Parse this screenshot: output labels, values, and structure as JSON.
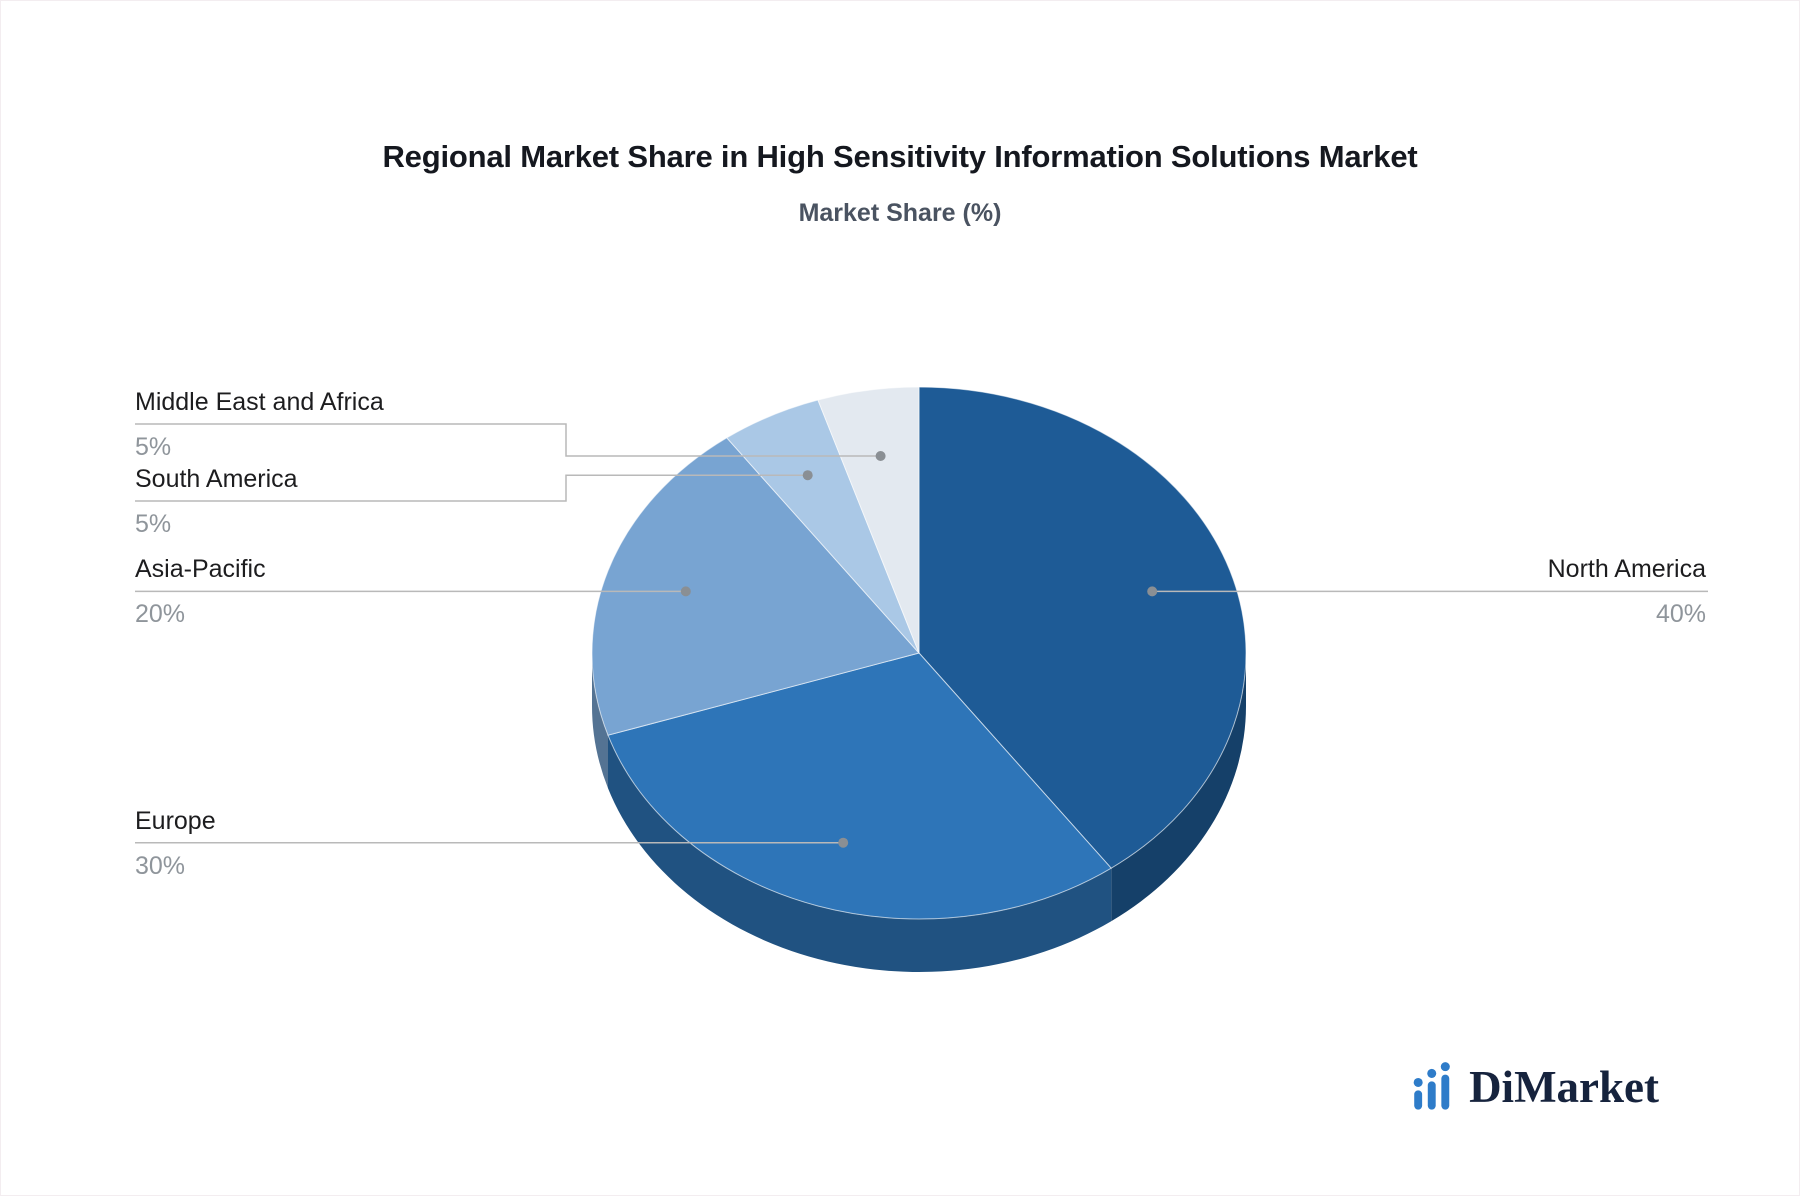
{
  "chart_data": {
    "type": "pie",
    "title": "Regional Market Share in High Sensitivity Information Solutions Market",
    "subtitle": "Market Share (%)",
    "unit": "%",
    "style": "3d-pie",
    "start_angle_deg": 0,
    "direction": "clockwise",
    "total": 100,
    "legend_position": "none",
    "slices": [
      {
        "label": "North America",
        "value": 40,
        "display": "40%",
        "color": "#1e5b96"
      },
      {
        "label": "Europe",
        "value": 30,
        "display": "30%",
        "color": "#2e75b8"
      },
      {
        "label": "Asia-Pacific",
        "value": 20,
        "display": "20%",
        "color": "#78a4d2"
      },
      {
        "label": "South America",
        "value": 5,
        "display": "5%",
        "color": "#aac8e6"
      },
      {
        "label": "Middle East and Africa",
        "value": 5,
        "display": "5%",
        "color": "#e3e9f0"
      }
    ]
  },
  "logo": {
    "text": "DiMarket",
    "icon": "bar-chart-dots-icon",
    "color": "#2e7cc9",
    "text_color": "#16233d"
  }
}
